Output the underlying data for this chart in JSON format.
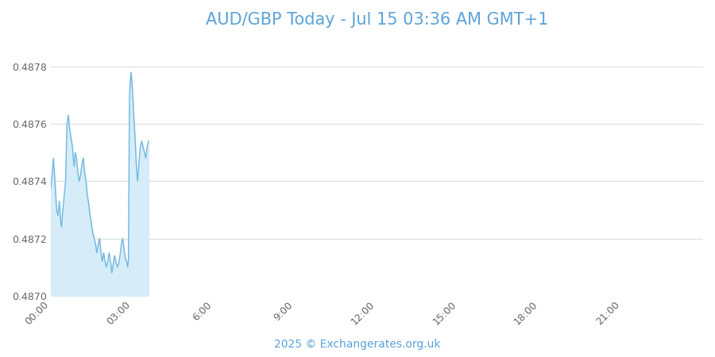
{
  "title": "AUD/GBP Today - Jul 15 03:36 AM GMT+1",
  "title_color": "#5ba3d9",
  "title_fontsize": 15,
  "footer": "2025 © Exchangerates.org.uk",
  "footer_color": "#5ba3d9",
  "footer_fontsize": 10,
  "ylim": [
    0.487,
    0.4879
  ],
  "yticks": [
    0.487,
    0.4872,
    0.4874,
    0.4876,
    0.4878
  ],
  "xtick_labels": [
    "00:00",
    "03:00",
    "6:00",
    "9:00",
    "12:00",
    "15:00",
    "18:00",
    "21:00"
  ],
  "xtick_positions": [
    0,
    3,
    6,
    9,
    12,
    15,
    18,
    21
  ],
  "xlim": [
    0,
    24
  ],
  "line_color": "#72b8e0",
  "fill_color": "#d6ecf8",
  "background_color": "#ffffff",
  "grid_color": "#dddddd",
  "tick_label_color": "#666666",
  "data_x": [
    0.0,
    0.05,
    0.1,
    0.15,
    0.18,
    0.22,
    0.27,
    0.32,
    0.37,
    0.4,
    0.45,
    0.5,
    0.55,
    0.6,
    0.65,
    0.7,
    0.75,
    0.8,
    0.83,
    0.87,
    0.9,
    0.95,
    1.0,
    1.05,
    1.1,
    1.15,
    1.2,
    1.25,
    1.3,
    1.35,
    1.4,
    1.45,
    1.5,
    1.55,
    1.6,
    1.65,
    1.7,
    1.75,
    1.8,
    1.85,
    1.9,
    1.95,
    2.0,
    2.05,
    2.1,
    2.15,
    2.2,
    2.25,
    2.3,
    2.35,
    2.4,
    2.45,
    2.5,
    2.55,
    2.6,
    2.65,
    2.7,
    2.75,
    2.8,
    2.83,
    2.86,
    2.9,
    2.93,
    2.96,
    3.0,
    3.03,
    3.06,
    3.1,
    3.13,
    3.16,
    3.2,
    3.23,
    3.26,
    3.3,
    3.35,
    3.4,
    3.45,
    3.5,
    3.55,
    3.6
  ],
  "data_y": [
    0.48737,
    0.48742,
    0.48748,
    0.48741,
    0.48736,
    0.4873,
    0.48728,
    0.48733,
    0.48726,
    0.48724,
    0.4873,
    0.48735,
    0.4874,
    0.4876,
    0.48763,
    0.48758,
    0.48755,
    0.48752,
    0.48748,
    0.48745,
    0.4875,
    0.48748,
    0.48743,
    0.4874,
    0.48742,
    0.48746,
    0.48748,
    0.48743,
    0.4874,
    0.48735,
    0.48732,
    0.48728,
    0.48725,
    0.48722,
    0.4872,
    0.48718,
    0.48715,
    0.48718,
    0.4872,
    0.48715,
    0.48712,
    0.48715,
    0.48712,
    0.4871,
    0.48712,
    0.48715,
    0.48712,
    0.48708,
    0.48711,
    0.48714,
    0.48712,
    0.4871,
    0.48711,
    0.48714,
    0.48718,
    0.4872,
    0.48716,
    0.48713,
    0.48712,
    0.4871,
    0.48712,
    0.4877,
    0.48775,
    0.48778,
    0.48773,
    0.48768,
    0.48762,
    0.48756,
    0.4875,
    0.48744,
    0.4874,
    0.48744,
    0.48748,
    0.48752,
    0.48754,
    0.48752,
    0.4875,
    0.48748,
    0.48752,
    0.48754
  ]
}
